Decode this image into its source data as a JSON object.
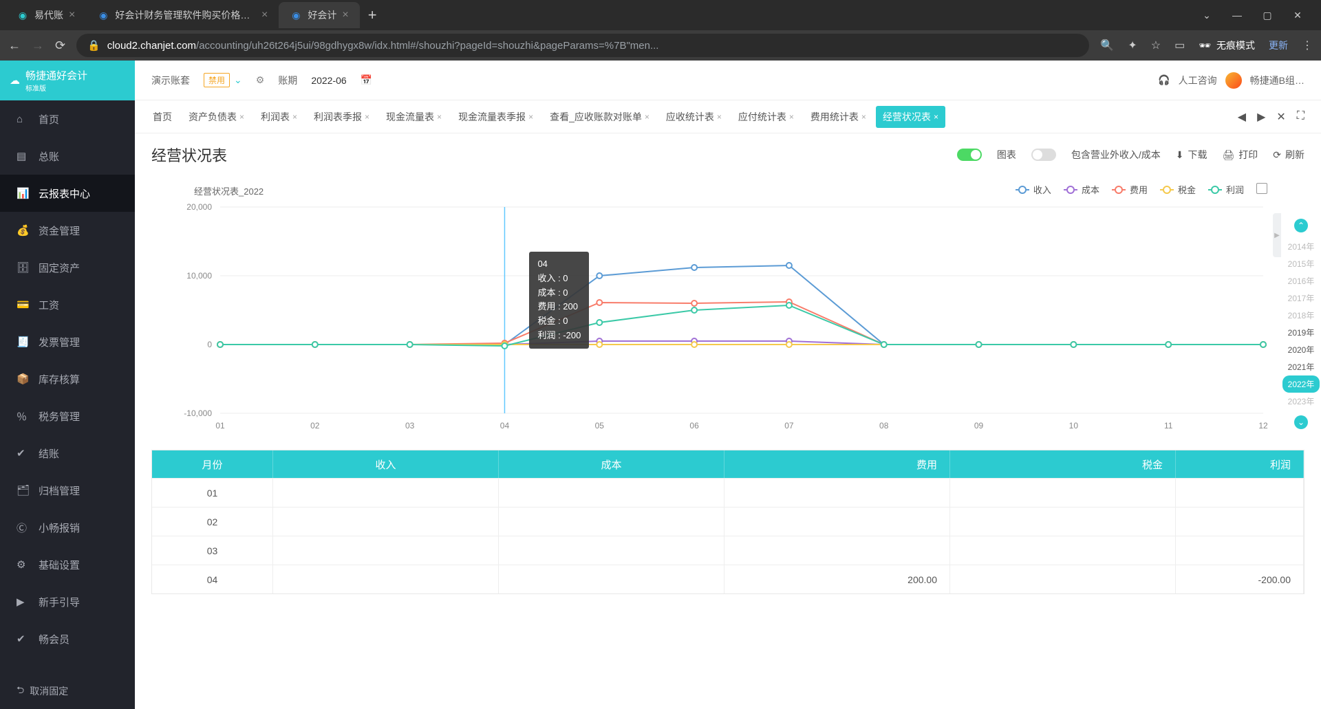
{
  "browser": {
    "tabs": [
      {
        "title": "易代账",
        "active": false,
        "closable": true,
        "icon_color": "#2ccbd0"
      },
      {
        "title": "好会计财务管理软件购买价格及…",
        "active": false,
        "closable": true,
        "icon_color": "#3a8ee6"
      },
      {
        "title": "好会计",
        "active": true,
        "closable": true,
        "icon_color": "#3a8ee6"
      }
    ],
    "url_host": "cloud2.chanjet.com",
    "url_path": "/accounting/uh26t264j5ui/98gdhygx8w/idx.html#/shouzhi?pageId=shouzhi&pageParams=%7B\"men...",
    "incognito_label": "无痕模式",
    "update_label": "更新"
  },
  "app": {
    "logo_main": "畅捷通好会计",
    "logo_sub": "标准版",
    "account_name": "演示账套",
    "badge": "禁用",
    "period_label": "账期",
    "period_value": "2022-06",
    "support_label": "人工咨询",
    "user_label": "畅捷通B组…"
  },
  "sidebar": {
    "items": [
      {
        "label": "首页",
        "icon": "home"
      },
      {
        "label": "总账",
        "icon": "ledger"
      },
      {
        "label": "云报表中心",
        "icon": "chart",
        "active": true
      },
      {
        "label": "资金管理",
        "icon": "money"
      },
      {
        "label": "固定资产",
        "icon": "asset"
      },
      {
        "label": "工资",
        "icon": "salary"
      },
      {
        "label": "发票管理",
        "icon": "invoice"
      },
      {
        "label": "库存核算",
        "icon": "stock"
      },
      {
        "label": "税务管理",
        "icon": "tax"
      },
      {
        "label": "结账",
        "icon": "close"
      },
      {
        "label": "归档管理",
        "icon": "archive"
      },
      {
        "label": "小畅报销",
        "icon": "expense"
      },
      {
        "label": "基础设置",
        "icon": "settings"
      },
      {
        "label": "新手引导",
        "icon": "guide"
      },
      {
        "label": "畅会员",
        "icon": "vip"
      }
    ],
    "footer": "取消固定"
  },
  "tabs": [
    {
      "label": "首页"
    },
    {
      "label": "资产负债表",
      "closable": true
    },
    {
      "label": "利润表",
      "closable": true
    },
    {
      "label": "利润表季报",
      "closable": true
    },
    {
      "label": "现金流量表",
      "closable": true
    },
    {
      "label": "现金流量表季报",
      "closable": true
    },
    {
      "label": "查看_应收账款对账单",
      "closable": true
    },
    {
      "label": "应收统计表",
      "closable": true
    },
    {
      "label": "应付统计表",
      "closable": true
    },
    {
      "label": "费用统计表",
      "closable": true
    },
    {
      "label": "经营状况表",
      "closable": true,
      "active": true
    }
  ],
  "page": {
    "title": "经营状况表",
    "toggle_chart_label": "图表",
    "toggle_extra_label": "包含营业外收入/成本",
    "download_label": "下载",
    "print_label": "打印",
    "refresh_label": "刷新"
  },
  "chart": {
    "title": "经营状况表_2022",
    "x_labels": [
      "01",
      "02",
      "03",
      "04",
      "05",
      "06",
      "07",
      "08",
      "09",
      "10",
      "11",
      "12"
    ],
    "y_ticks": [
      -10000,
      0,
      10000,
      20000
    ],
    "y_tick_labels": [
      "-10,000",
      "0",
      "10,000",
      "20,000"
    ],
    "ylim": [
      -10000,
      20000
    ],
    "grid_color": "#eeeeee",
    "axis_color": "#cccccc",
    "background": "#ffffff",
    "highlight_x_index": 3,
    "highlight_color": "#62c9ff",
    "series": [
      {
        "name": "收入",
        "color": "#5b9bd5",
        "values": [
          0,
          0,
          0,
          0,
          10000,
          11200,
          11500,
          0,
          0,
          0,
          0,
          0
        ]
      },
      {
        "name": "成本",
        "color": "#a070d6",
        "values": [
          0,
          0,
          0,
          0,
          500,
          500,
          500,
          0,
          0,
          0,
          0,
          0
        ]
      },
      {
        "name": "费用",
        "color": "#f87c6a",
        "values": [
          0,
          0,
          0,
          200,
          6100,
          6000,
          6200,
          0,
          0,
          0,
          0,
          0
        ]
      },
      {
        "name": "税金",
        "color": "#f5c94c",
        "values": [
          0,
          0,
          0,
          0,
          0,
          0,
          0,
          0,
          0,
          0,
          0,
          0
        ]
      },
      {
        "name": "利润",
        "color": "#3bc9a7",
        "values": [
          0,
          0,
          0,
          -200,
          3200,
          5000,
          5700,
          0,
          0,
          0,
          0,
          0
        ]
      }
    ],
    "tooltip": {
      "title": "04",
      "rows": [
        "收入 : 0",
        "成本 : 0",
        "费用 : 200",
        "税金 : 0",
        "利润 : -200"
      ]
    }
  },
  "years": {
    "list": [
      "2014年",
      "2015年",
      "2016年",
      "2017年",
      "2018年",
      "2019年",
      "2020年",
      "2021年",
      "2022年",
      "2023年"
    ],
    "near": [
      "2019年",
      "2020年",
      "2021年"
    ],
    "selected": "2022年"
  },
  "table": {
    "columns": [
      "月份",
      "收入",
      "成本",
      "费用",
      "税金",
      "利润"
    ],
    "rows": [
      {
        "month": "01",
        "in": "",
        "cost": "",
        "fee": "",
        "tax": "",
        "profit": ""
      },
      {
        "month": "02",
        "in": "",
        "cost": "",
        "fee": "",
        "tax": "",
        "profit": ""
      },
      {
        "month": "03",
        "in": "",
        "cost": "",
        "fee": "",
        "tax": "",
        "profit": ""
      },
      {
        "month": "04",
        "in": "",
        "cost": "",
        "fee": "200.00",
        "tax": "",
        "profit": "-200.00"
      }
    ]
  }
}
